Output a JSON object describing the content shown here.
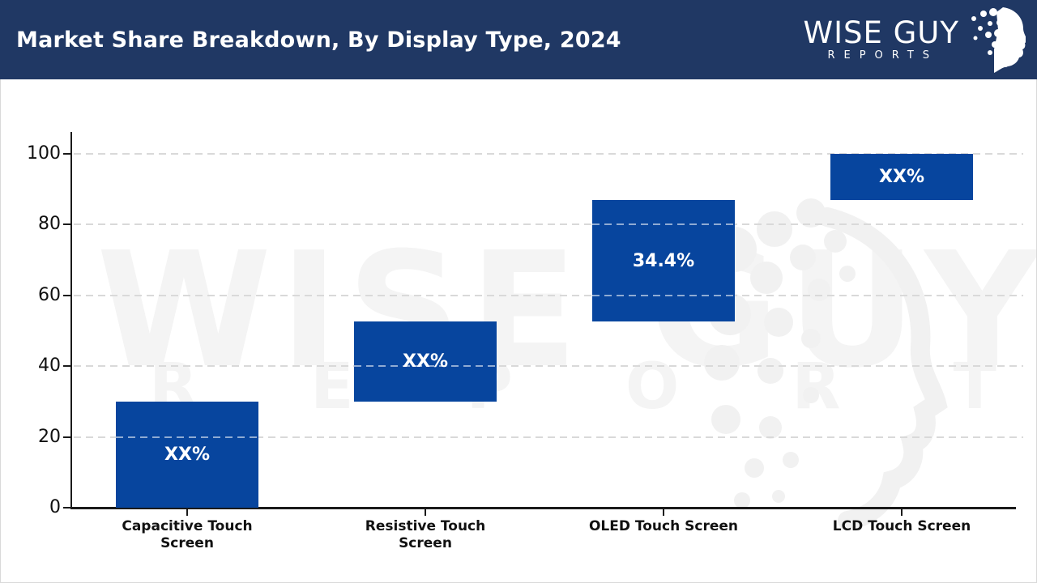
{
  "header": {
    "title": "Market Share Breakdown, By Display Type, 2024",
    "logo": {
      "name": "WISE GUY",
      "tagline": "REPORTS"
    }
  },
  "watermark": {
    "line1": "WISE GUY",
    "line2": "R E P O R T S"
  },
  "chart_data": {
    "type": "bar",
    "variant": "waterfall-stacked",
    "title": "Market Share Breakdown, By Display Type, 2024",
    "categories": [
      "Capacitive Touch Screen",
      "Resistive Touch Screen",
      "OLED Touch Screen",
      "LCD Touch Screen"
    ],
    "category_display_lines": [
      [
        "Capacitive Touch",
        "Screen"
      ],
      [
        "Resistive Touch",
        "Screen"
      ],
      [
        "OLED Touch Screen"
      ],
      [
        "LCD Touch Screen"
      ]
    ],
    "values": [
      30.0,
      22.5,
      34.4,
      13.1
    ],
    "segment_ranges": [
      [
        0,
        30.0
      ],
      [
        30.0,
        52.5
      ],
      [
        52.5,
        86.9
      ],
      [
        86.9,
        100.0
      ]
    ],
    "bar_labels": [
      "XX%",
      "XX%",
      "34.4%",
      "XX%"
    ],
    "xlabel": "",
    "ylabel": "",
    "yticks": [
      0,
      20,
      40,
      60,
      80,
      100
    ],
    "ylim": [
      0,
      105
    ],
    "grid": {
      "axis": "y",
      "style": "dashed",
      "color": "#d9d9d9"
    },
    "legend": "none",
    "bar_color": "#07459e",
    "bar_label_color": "#ffffff"
  }
}
